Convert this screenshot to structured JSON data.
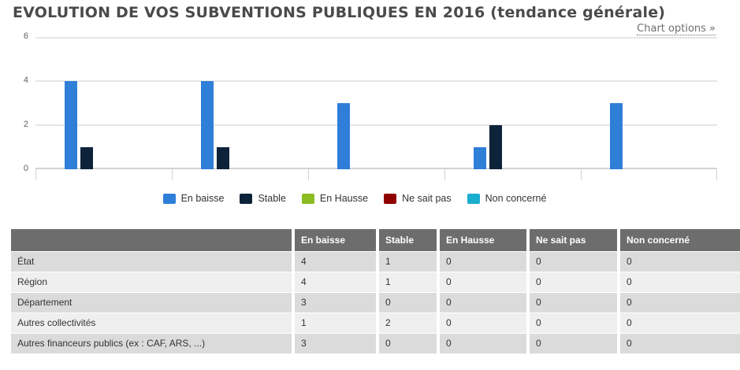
{
  "title": "EVOLUTION DE VOS SUBVENTIONS PUBLIQUES EN 2016 (tendance générale)",
  "chart_options_label": "Chart options »",
  "chart_data": {
    "type": "bar",
    "title": "EVOLUTION DE VOS SUBVENTIONS PUBLIQUES EN 2016 (tendance générale)",
    "categories": [
      "État",
      "Région",
      "Département",
      "Autres collectivités",
      "Autres financeurs publics (ex : CAF, ARS, ...)"
    ],
    "series": [
      {
        "name": "En baisse",
        "color": "#2f7ed8",
        "values": [
          4,
          4,
          3,
          1,
          3
        ]
      },
      {
        "name": "Stable",
        "color": "#0d233a",
        "values": [
          1,
          1,
          0,
          2,
          0
        ]
      },
      {
        "name": "En Hausse",
        "color": "#8bbc21",
        "values": [
          0,
          0,
          0,
          0,
          0
        ]
      },
      {
        "name": "Ne sait pas",
        "color": "#910000",
        "values": [
          0,
          0,
          0,
          0,
          0
        ]
      },
      {
        "name": "Non concerné",
        "color": "#1aadce",
        "values": [
          0,
          0,
          0,
          0,
          0
        ]
      }
    ],
    "xlabel": "",
    "ylabel": "",
    "ylim": [
      0,
      6
    ],
    "yticks": [
      0,
      2,
      4,
      6
    ],
    "grid": true,
    "legend_position": "bottom",
    "x_axis_tick_labels_shown": false
  },
  "table": {
    "columns": [
      "",
      "En baisse",
      "Stable",
      "En Hausse",
      "Ne sait pas",
      "Non concerné"
    ],
    "rows": [
      {
        "label": "État",
        "values": [
          4,
          1,
          0,
          0,
          0
        ]
      },
      {
        "label": "Région",
        "values": [
          4,
          1,
          0,
          0,
          0
        ]
      },
      {
        "label": "Département",
        "values": [
          3,
          0,
          0,
          0,
          0
        ]
      },
      {
        "label": "Autres collectivités",
        "values": [
          1,
          2,
          0,
          0,
          0
        ]
      },
      {
        "label": "Autres financeurs publics (ex : CAF, ARS, ...)",
        "values": [
          3,
          0,
          0,
          0,
          0
        ]
      }
    ]
  }
}
